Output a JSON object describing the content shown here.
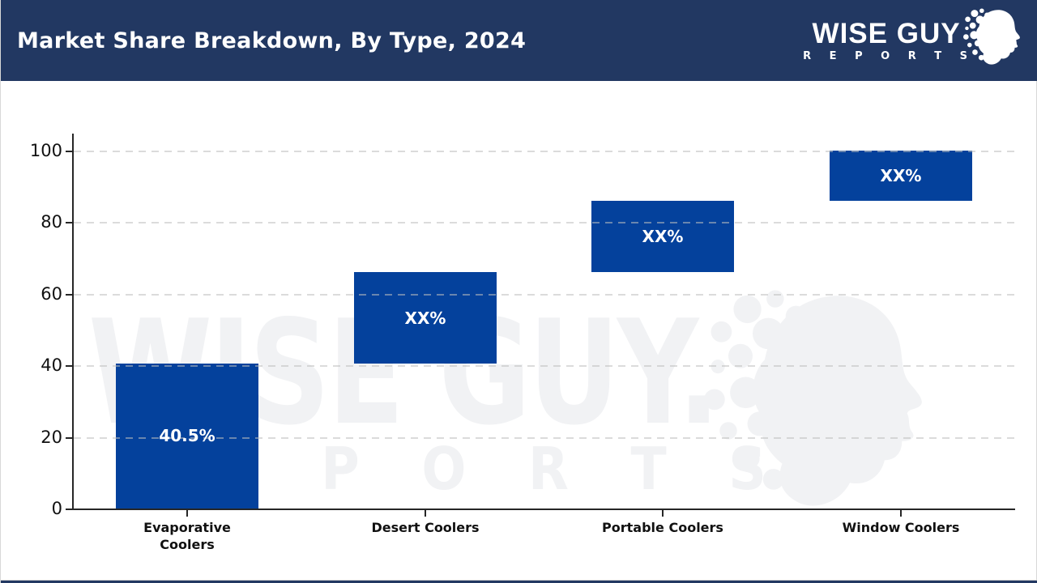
{
  "header": {
    "title": "Market Share Breakdown, By Type, 2024",
    "logo": {
      "line1": "WISE GUY",
      "line2": "R E P O R T S",
      "face_icon": "dotted-profile-face"
    }
  },
  "watermark": {
    "line1": "WISE GUY.",
    "line2": "R E P O R T S",
    "face_icon": "dotted-profile-face"
  },
  "colors": {
    "header_bg": "#223862",
    "bar_fill": "#04419c",
    "bar_label": "#ffffff",
    "watermark": "#f1f2f4",
    "axis": "#262626",
    "gridline": "#cccccc"
  },
  "chart_data": {
    "type": "bar",
    "subtype": "waterfall",
    "title": "Market Share Breakdown, By Type, 2024",
    "xlabel": "",
    "ylabel": "",
    "ylim": [
      0,
      100
    ],
    "yticks": [
      0,
      20,
      40,
      60,
      80,
      100
    ],
    "grid": "dashed-horizontal",
    "legend": "none",
    "categories": [
      "Evaporative\nCoolers",
      "Desert Coolers",
      "Portable Coolers",
      "Window Coolers"
    ],
    "values": [
      40.5,
      25.5,
      20,
      14
    ],
    "segments": [
      {
        "category": "Evaporative Coolers",
        "start": 0,
        "end": 40.5,
        "label": "40.5%"
      },
      {
        "category": "Desert Coolers",
        "start": 40.5,
        "end": 66,
        "label": "XX%"
      },
      {
        "category": "Portable Coolers",
        "start": 66,
        "end": 86,
        "label": "XX%"
      },
      {
        "category": "Window Coolers",
        "start": 86,
        "end": 100,
        "label": "XX%"
      }
    ]
  }
}
